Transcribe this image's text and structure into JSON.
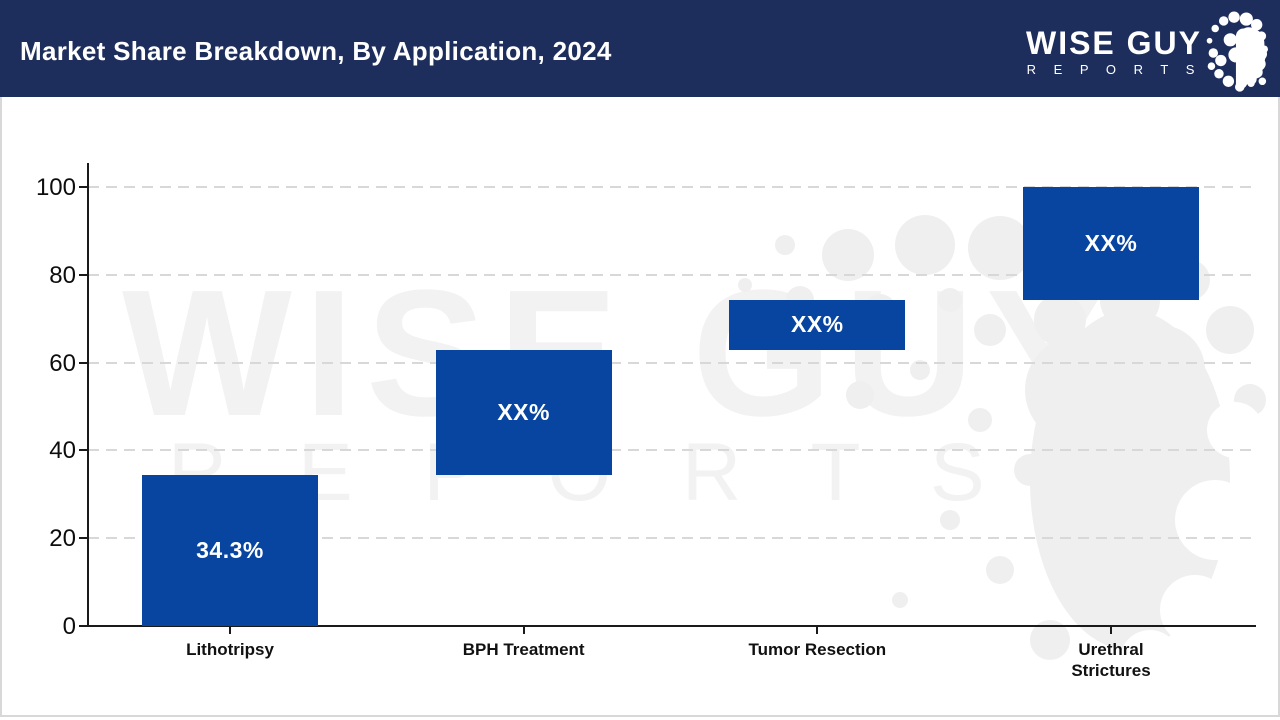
{
  "header": {
    "title": "Market Share Breakdown, By Application, 2024",
    "logo": {
      "brand": "WISE GUY",
      "sub": "R E P O R T S"
    }
  },
  "watermark": {
    "brand": "WISE GUY",
    "sub": "R E P O R T S"
  },
  "colors": {
    "header_bg": "#1e2e5c",
    "bar": "#0845a0",
    "bar_label": "#ffffff",
    "grid": "#d8d8d8",
    "axis": "#1a1a1a",
    "watermark": "#f2f2f2"
  },
  "chart_data": {
    "type": "bar",
    "subtype": "waterfall",
    "title": "Market Share Breakdown, By Application, 2024",
    "categories": [
      "Lithotripsy",
      "BPH Treatment",
      "Tumor Resection",
      "Urethral\nStrictures"
    ],
    "bars": [
      {
        "category": "Lithotripsy",
        "start": 0,
        "end": 34.3,
        "label": "34.3%"
      },
      {
        "category": "BPH Treatment",
        "start": 34.3,
        "end": 62.9,
        "label": "XX%"
      },
      {
        "category": "Tumor Resection",
        "start": 62.9,
        "end": 74.3,
        "label": "XX%"
      },
      {
        "category": "Urethral Strictures",
        "start": 74.3,
        "end": 100,
        "label": "XX%"
      }
    ],
    "xlabel": "",
    "ylabel": "",
    "ylim": [
      0,
      100
    ],
    "yticks": [
      0,
      20,
      40,
      60,
      80,
      100
    ],
    "grid": "horizontal-dashed",
    "legend": "none"
  }
}
